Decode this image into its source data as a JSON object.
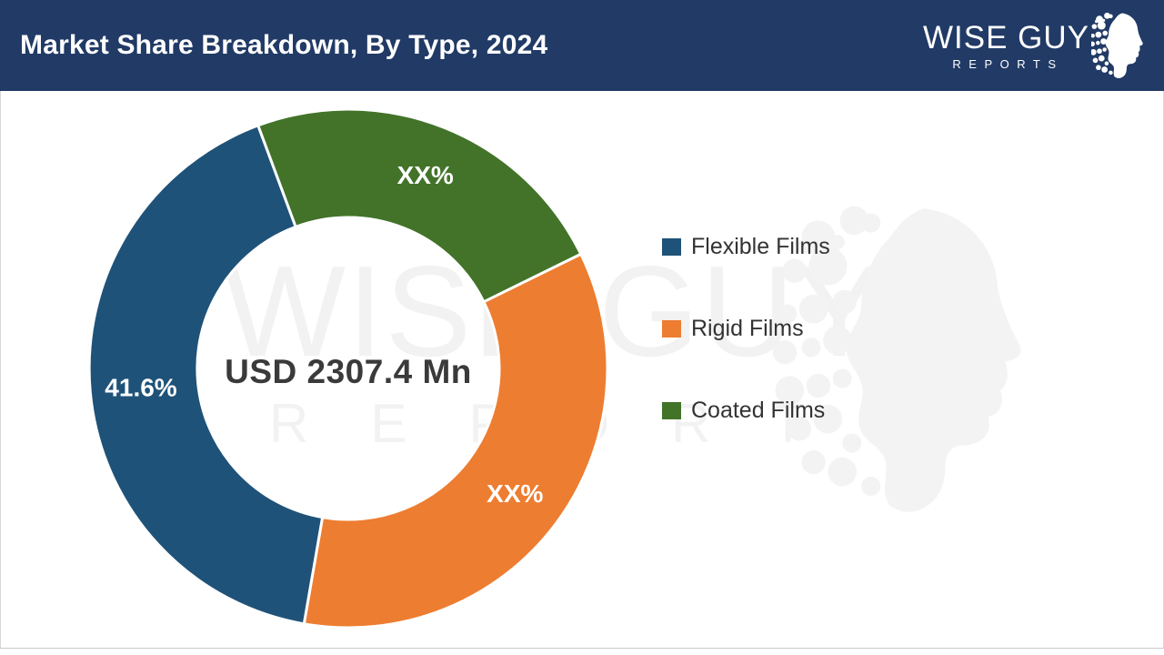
{
  "header": {
    "title": "Market Share Breakdown, By Type, 2024",
    "bg_color": "#213a66",
    "logo": {
      "line1": "WISE GUY",
      "line2": "REPORTS",
      "icon": "face-profile-dots-icon"
    }
  },
  "watermark": {
    "line1": "WISE GUY",
    "line2": "REPORTS",
    "icon": "face-profile-dots-icon",
    "color": "#f2f2f2"
  },
  "chart_data": {
    "type": "pie",
    "subtype": "donut",
    "title": "Market Share Breakdown, By Type, 2024",
    "center_label": "USD 2307.4 Mn",
    "center_label_color": "#3a3a3a",
    "data_label_color": "#ffffff",
    "start_angle_deg": -20.4,
    "slices": [
      {
        "name": "Coated Films",
        "value_pct": 23.4,
        "data_label": "XX%",
        "color": "#427329"
      },
      {
        "name": "Rigid Films",
        "value_pct": 35.0,
        "data_label": "XX%",
        "color": "#ed7d31"
      },
      {
        "name": "Flexible Films",
        "value_pct": 41.6,
        "data_label": "41.6%",
        "color": "#1f5278"
      }
    ],
    "legend": {
      "position": "right",
      "items": [
        {
          "label": "Flexible Films",
          "color": "#1f5278"
        },
        {
          "label": "Rigid Films",
          "color": "#ed7d31"
        },
        {
          "label": "Coated Films",
          "color": "#427329"
        }
      ]
    }
  }
}
